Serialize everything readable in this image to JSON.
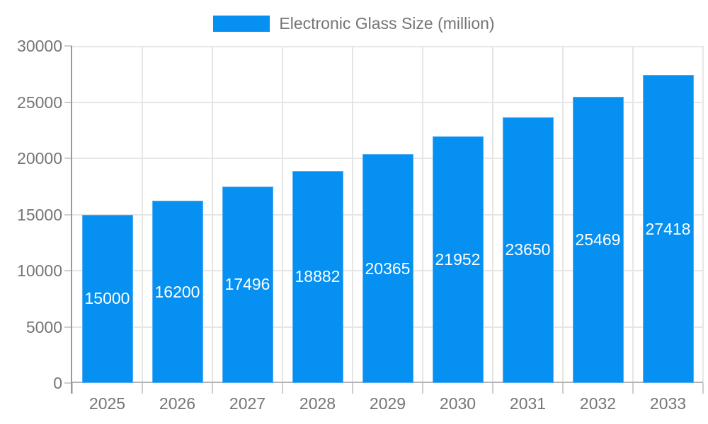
{
  "chart_data": {
    "type": "bar",
    "title": "",
    "legend": {
      "label": "Electronic Glass Size (million)",
      "position": "top"
    },
    "categories": [
      "2025",
      "2026",
      "2027",
      "2028",
      "2029",
      "2030",
      "2031",
      "2032",
      "2033"
    ],
    "series": [
      {
        "name": "Electronic Glass Size (million)",
        "values": [
          15000,
          16200,
          17496,
          18882,
          20365,
          21952,
          23650,
          25469,
          27418
        ]
      }
    ],
    "xlabel": "",
    "ylabel": "",
    "ylim": [
      0,
      30000
    ],
    "yticks": [
      0,
      5000,
      10000,
      15000,
      20000,
      25000,
      30000
    ],
    "grid": true,
    "colors": {
      "bar": "#0590F2",
      "bar_edge": "#56AFF5",
      "bar_label_text": "#FFFFFF",
      "axis_text": "#757575",
      "gridline": "#E6E6E6",
      "axis_line": "#9A9A9A",
      "baseline": "#B3B3B3",
      "tick": "#CCCCCC",
      "background": "#FFFFFF"
    }
  }
}
